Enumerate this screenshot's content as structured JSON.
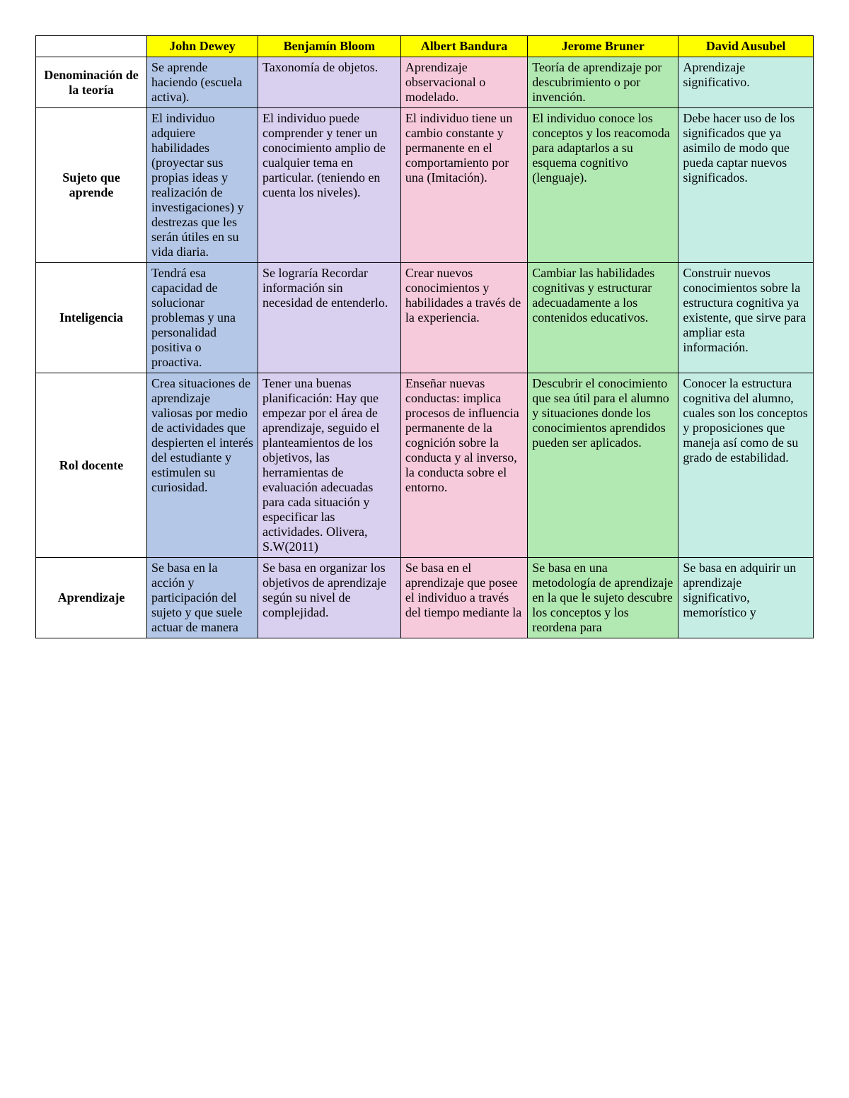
{
  "table": {
    "header_bg": "#ffff00",
    "columns": [
      {
        "label": "",
        "bg": "#ffffff"
      },
      {
        "label": "John Dewey",
        "bg": "#b4c7e7"
      },
      {
        "label": "Benjamín Bloom",
        "bg": "#d9cfee"
      },
      {
        "label": "Albert Bandura",
        "bg": "#f7cadb"
      },
      {
        "label": "Jerome Bruner",
        "bg": "#b2e8b2"
      },
      {
        "label": "David Ausubel",
        "bg": "#c5ede4"
      }
    ],
    "rows": [
      {
        "label": "Denominación de la teoría",
        "cells": [
          "Se aprende haciendo (escuela activa).",
          "Taxonomía de objetos.",
          "Aprendizaje observacional o modelado.",
          "Teoría de aprendizaje por descubrimiento o por invención.",
          "Aprendizaje significativo."
        ]
      },
      {
        "label": "Sujeto que aprende",
        "cells": [
          "El individuo adquiere habilidades (proyectar sus propias ideas y realización de investigaciones) y destrezas que les serán útiles en su vida diaria.",
          " El individuo puede comprender y tener un conocimiento amplio de cualquier tema en particular. (teniendo en cuenta los niveles).",
          "El individuo tiene un cambio constante y permanente en el comportamiento por una (Imitación).",
          "El individuo conoce los conceptos y los reacomoda para adaptarlos a su esquema cognitivo (lenguaje).",
          "Debe hacer uso de los significados que ya asimilo de modo que pueda captar nuevos significados."
        ]
      },
      {
        "label": "Inteligencia",
        "cells": [
          "Tendrá esa capacidad de solucionar problemas y una personalidad positiva o proactiva.",
          "Se lograría Recordar información sin necesidad de entenderlo.",
          "Crear nuevos conocimientos y habilidades a través de la experiencia.",
          "Cambiar las habilidades cognitivas y estructurar adecuadamente a los contenidos educativos.",
          "Construir nuevos conocimientos sobre la estructura cognitiva ya existente, que sirve para ampliar esta información."
        ]
      },
      {
        "label": "Rol docente",
        "cells": [
          "Crea situaciones de aprendizaje valiosas por medio de actividades que despierten el interés del estudiante y estimulen su curiosidad.",
          "Tener una buenas planificación: Hay que empezar por el área de aprendizaje, seguido el planteamientos de los objetivos, las herramientas de evaluación adecuadas para cada situación y especificar las actividades. Olivera, S.W(2011)",
          "Enseñar nuevas conductas: implica procesos de influencia permanente de la cognición sobre la conducta y al inverso, la conducta sobre el entorno.",
          "Descubrir el conocimiento que sea útil para el alumno y situaciones donde los conocimientos aprendidos pueden ser aplicados.",
          "Conocer la estructura cognitiva del alumno, cuales son los conceptos y proposiciones que maneja así como de su grado de estabilidad."
        ]
      },
      {
        "label": "Aprendizaje",
        "cells": [
          "Se basa en la acción y participación del sujeto y que suele actuar de manera",
          "Se basa en organizar los objetivos de aprendizaje según su nivel de complejidad.",
          "Se basa en el aprendizaje que posee el individuo a través del tiempo mediante la",
          "Se basa en una metodología de aprendizaje en la que le sujeto descubre los conceptos y los reordena para",
          "Se basa en adquirir un aprendizaje significativo, memorístico y"
        ]
      }
    ]
  }
}
